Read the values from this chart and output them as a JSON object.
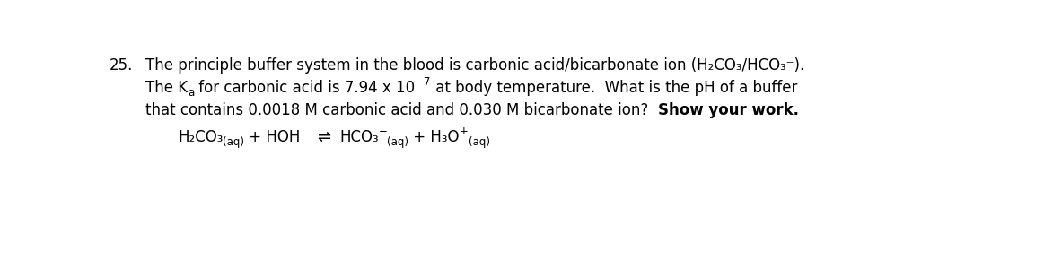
{
  "background_color": "#ffffff",
  "figsize": [
    11.73,
    2.9
  ],
  "dpi": 100,
  "question_number": "25.",
  "line1": "The principle buffer system in the blood is carbonic acid/bicarbonate ion (H₂CO₃/HCO₃⁻).",
  "line2_pre": "The K",
  "line2_ka": "a",
  "line2_mid": " for carbonic acid is 7.94 x 10",
  "line2_exp": "−7",
  "line2_post": " at body temperature.  What is the pH of a buffer",
  "line3_normal": "that contains 0.0018 M carbonic acid and 0.030 M bicarbonate ion?  ",
  "line3_bold": "Show your work.",
  "eq_h2co3": "H₂CO₃",
  "eq_aq1": "(aq)",
  "eq_hoh": " + HOH",
  "eq_arrow": "⇌",
  "eq_hco3": "HCO₃",
  "eq_minus": "−",
  "eq_aq2": "(aq)",
  "eq_h3o": " + H₃O",
  "eq_plus": "+",
  "eq_aq3": "(aq)"
}
